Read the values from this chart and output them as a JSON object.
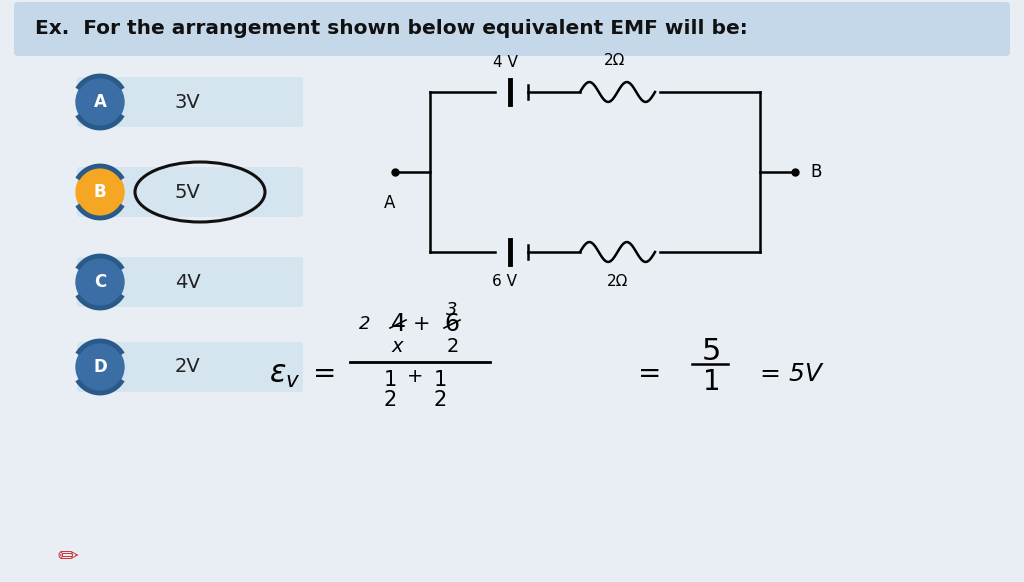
{
  "title": "Ex.  For the arrangement shown below equivalent EMF will be:",
  "title_bg": "#c5d8ea",
  "main_bg": "#e8eef4",
  "options": [
    {
      "label": "A",
      "text": "3V",
      "selected": false
    },
    {
      "label": "B",
      "text": "5V",
      "selected": true
    },
    {
      "label": "C",
      "text": "4V",
      "selected": false
    },
    {
      "label": "D",
      "text": "2V",
      "selected": false
    }
  ],
  "option_bg": "#d5e5f0",
  "option_selected_bg": "#f5a623",
  "option_circle_color": "#3a6ea5",
  "circuit_bg": "#ffffff",
  "circuit": {
    "top_emf": "4 V",
    "top_r": "2Ω",
    "bot_emf": "6 V",
    "bot_r": "2Ω",
    "node_a": "A",
    "node_b": "B"
  }
}
